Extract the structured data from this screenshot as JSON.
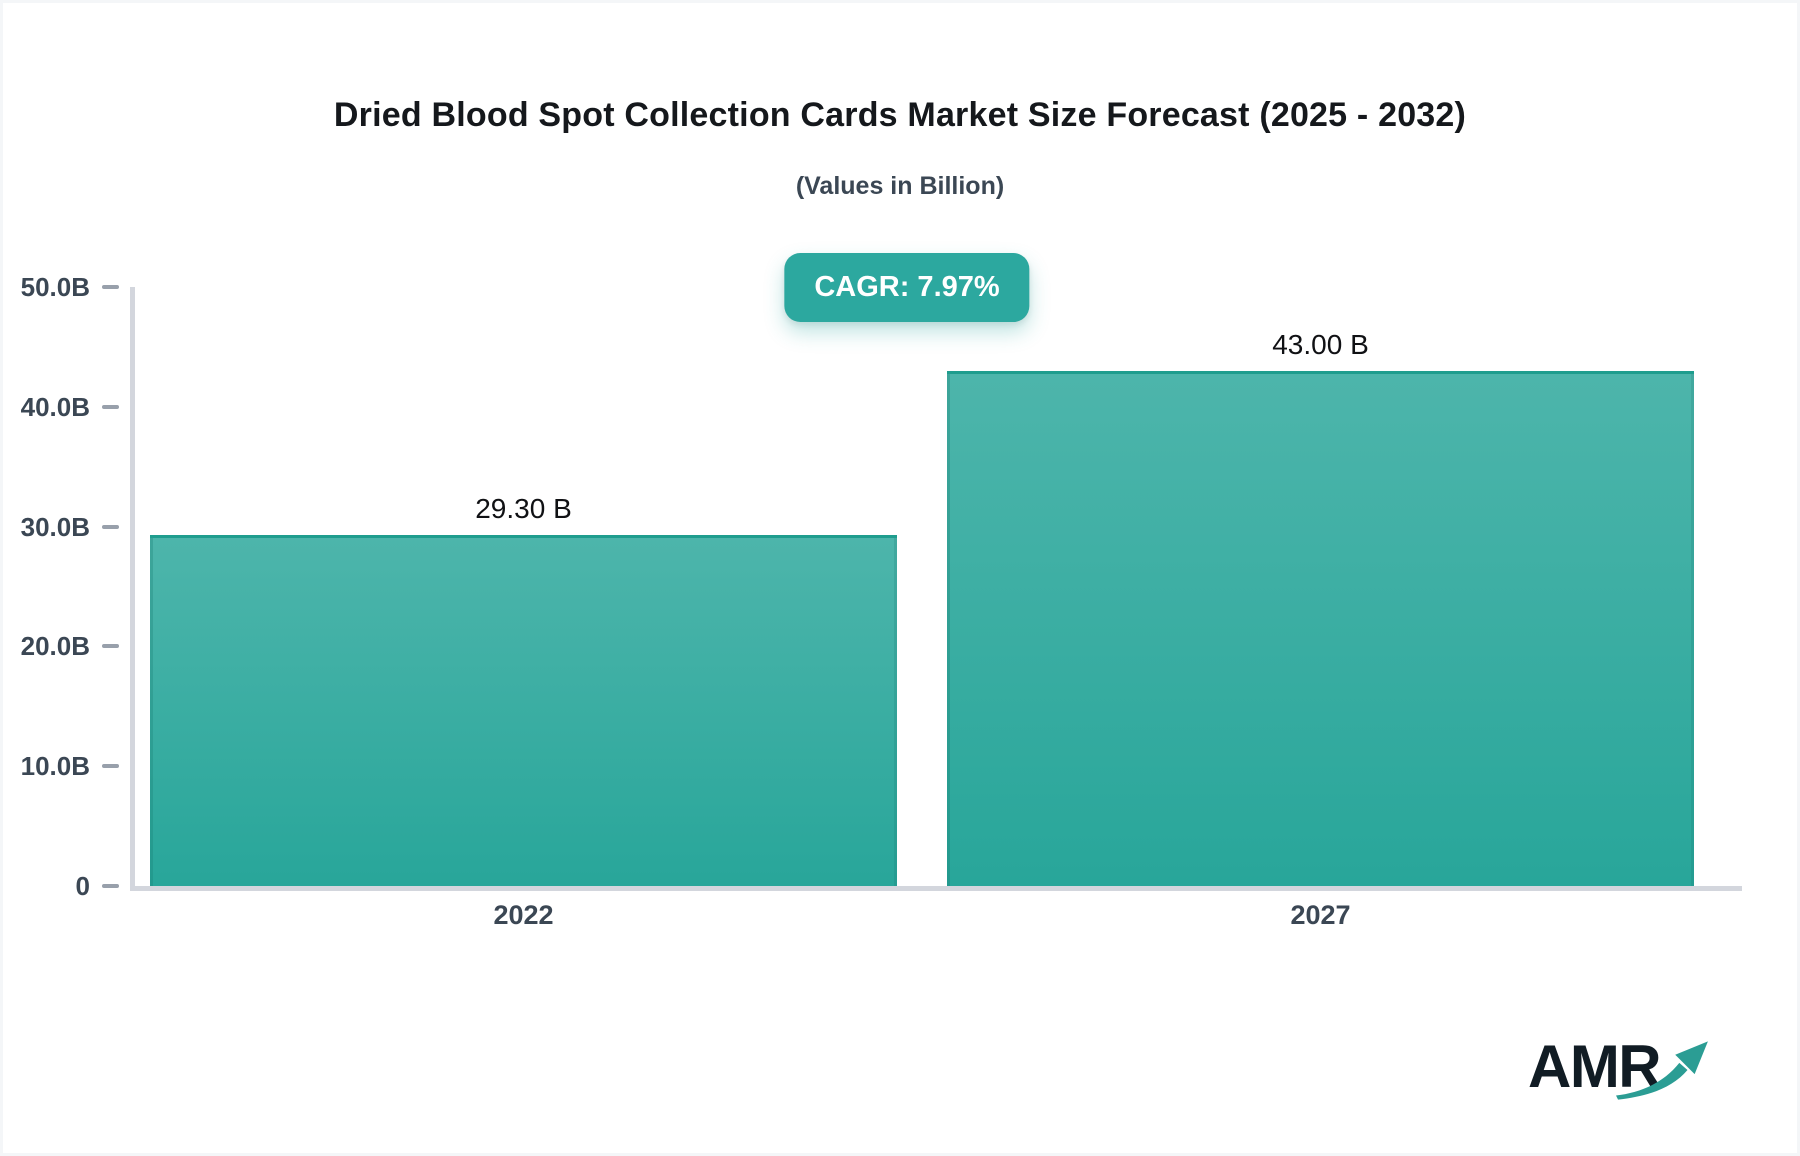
{
  "page": {
    "title": "Dried Blood Spot Collection Cards Market Size Forecast (2025 - 2032)",
    "subtitle": "(Values in Billion)",
    "cagr_badge_label": "CAGR: 7.97%"
  },
  "chart_data": {
    "type": "bar",
    "title": "Dried Blood Spot Collection Cards Market Size Forecast (2025 - 2032)",
    "subtitle": "(Values in Billion)",
    "categories": [
      "2022",
      "2027"
    ],
    "values": [
      29.3,
      43.0
    ],
    "value_labels": [
      "29.30 B",
      "43.00 B"
    ],
    "cagr_percent": 7.97,
    "xlabel": "",
    "ylabel": "",
    "ylim": [
      0,
      50
    ],
    "y_ticks": [
      {
        "value": 50,
        "label": "50.0B"
      },
      {
        "value": 40,
        "label": "40.0B"
      },
      {
        "value": 30,
        "label": "30.0B"
      },
      {
        "value": 20,
        "label": "20.0B"
      },
      {
        "value": 10,
        "label": "10.0B"
      },
      {
        "value": 0,
        "label": "0"
      }
    ],
    "grid": false,
    "legend": false
  },
  "colors": {
    "bar_top": "#4db5ab",
    "bar_bottom": "#28a69a",
    "bar_border": "#1f9d8e",
    "badge_bg": "#2ca89f",
    "axis_line": "#d3d6dd",
    "tick_dash": "#98a0ab",
    "axis_label": "#3b4754",
    "title": "#15181c",
    "value_label": "#101114",
    "logo_text": "#111c24",
    "logo_arrow": "#2b9d94"
  },
  "logo": {
    "text": "AMR",
    "arrow_icon": "growth-arrow-icon"
  }
}
